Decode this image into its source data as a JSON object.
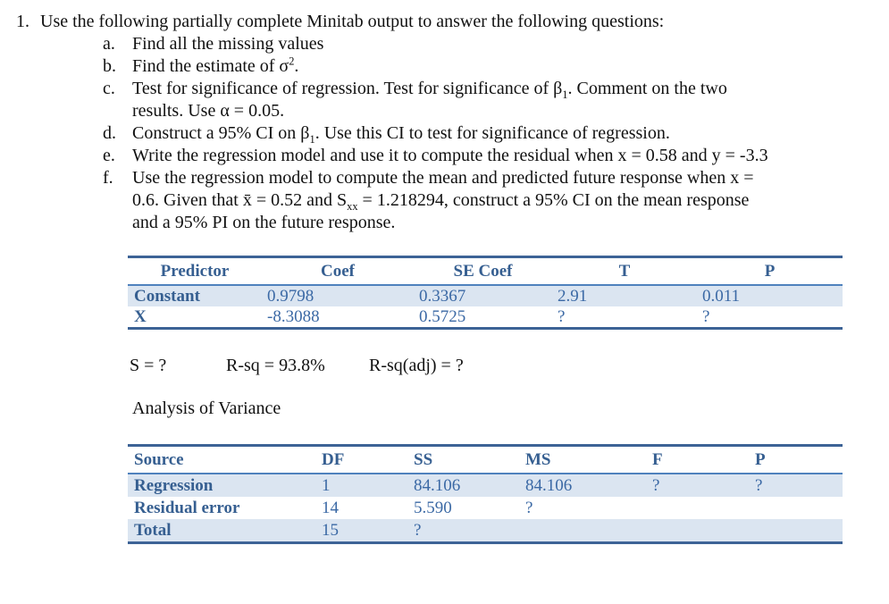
{
  "colors": {
    "border-heavy": "#3D6396",
    "border-light": "#4F81BD",
    "row-shade": "#DBE5F1",
    "head-text": "#365F91",
    "val-text": "#3B69A5"
  },
  "question": {
    "number": "1.",
    "intro": "Use the following partially complete Minitab output to answer the following questions:",
    "items": {
      "a": {
        "letter": "a.",
        "l1": "Find all the missing values"
      },
      "b": {
        "letter": "b.",
        "l1a": "Find the estimate of σ",
        "l1sup": "2",
        "l1b": "."
      },
      "c": {
        "letter": "c.",
        "l1a": "Test for significance of regression. Test for significance of β",
        "l1sub": "1",
        "l1b": ". Comment on the two",
        "l2": "results. Use α = 0.05."
      },
      "d": {
        "letter": "d.",
        "l1a": "Construct a 95% CI on β",
        "l1sub": "1",
        "l1b": ". Use this CI to test for significance of regression."
      },
      "e": {
        "letter": "e.",
        "l1": "Write the regression model and use it to compute the residual when x = 0.58 and y = -3.3"
      },
      "f": {
        "letter": "f.",
        "l1": "Use the regression model to compute the mean and predicted future response when x =",
        "l2a": "0.6. Given that x̄ = 0.52 and S",
        "l2sub": "xx",
        "l2b": " = 1.218294, construct a 95% CI on the mean response",
        "l3": "and a 95% PI on the future response."
      }
    }
  },
  "coef_table": {
    "headers": [
      "Predictor",
      "Coef",
      "SE Coef",
      "T",
      "P"
    ],
    "rows": [
      {
        "label": "Constant",
        "values": [
          "0.9798",
          "0.3367",
          "2.91",
          "0.011"
        ]
      },
      {
        "label": "X",
        "values": [
          "-8.3088",
          "0.5725",
          "?",
          "?"
        ]
      }
    ]
  },
  "summary_line": {
    "s": "S = ?",
    "rsq": "R-sq = 93.8%",
    "rsq_adj": "R-sq(adj) = ?"
  },
  "anova": {
    "title": "Analysis of Variance",
    "headers": [
      "Source",
      "DF",
      "SS",
      "MS",
      "F",
      "P"
    ],
    "rows": [
      {
        "label": "Regression",
        "values": [
          "1",
          "84.106",
          "84.106",
          "?",
          "?"
        ]
      },
      {
        "label": "Residual error",
        "values": [
          "14",
          "5.590",
          "?",
          "",
          ""
        ]
      },
      {
        "label": "Total",
        "values": [
          "15",
          "?",
          "",
          "",
          ""
        ]
      }
    ]
  }
}
